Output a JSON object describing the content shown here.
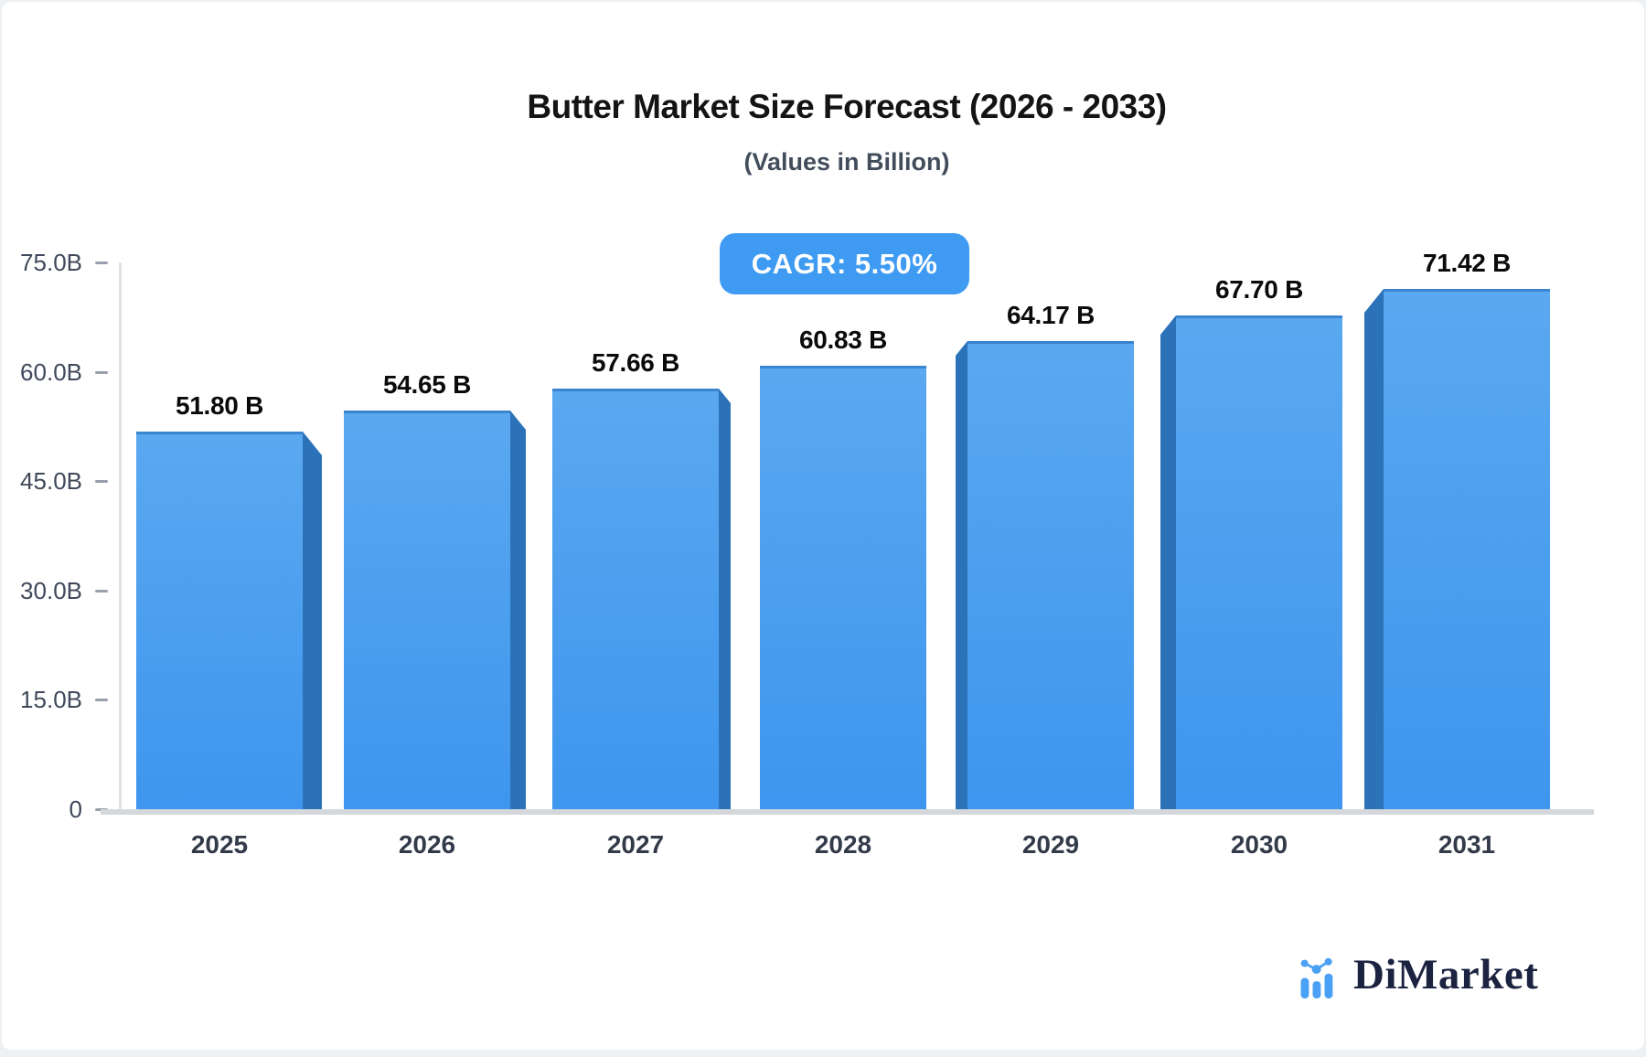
{
  "header": {
    "title": "Butter Market Size Forecast (2026 - 2033)",
    "subtitle": "(Values in Billion)"
  },
  "badge": {
    "text": "CAGR: 5.50%",
    "bg": "#3f9bf2",
    "text_color": "#ffffff"
  },
  "chart_data": {
    "type": "bar",
    "categories": [
      "2025",
      "2026",
      "2027",
      "2028",
      "2029",
      "2030",
      "2031"
    ],
    "values": [
      51.8,
      54.65,
      57.66,
      60.83,
      64.17,
      67.7,
      71.42
    ],
    "value_labels": [
      "51.80 B",
      "54.65 B",
      "57.66 B",
      "60.83 B",
      "64.17 B",
      "67.70 B",
      "71.42 B"
    ],
    "title": "Butter Market Size Forecast (2026 - 2033)",
    "subtitle": "(Values in Billion)",
    "xlabel": "",
    "ylabel": "",
    "ylim": [
      0,
      75
    ],
    "yticks": [
      {
        "value": 0,
        "label": "0"
      },
      {
        "value": 15,
        "label": "15.0B"
      },
      {
        "value": 30,
        "label": "30.0B"
      },
      {
        "value": 45,
        "label": "45.0B"
      },
      {
        "value": 60,
        "label": "60.0B"
      },
      {
        "value": 75,
        "label": "75.0B"
      }
    ],
    "grid": false,
    "legend": false,
    "bar_style": "3d-perspective",
    "colors": {
      "bar_top": "#5aa8f0",
      "bar_bottom": "#3e96ee",
      "bar_side": "#2c72b8",
      "bar_top_line": "#3a85d0",
      "axis_line": "#dde1e6",
      "baseline": "#d4d7db"
    }
  },
  "logo": {
    "text": "DiMarket",
    "icon": "mini-bar-chart-icon",
    "text_color": "#1b2340",
    "accent": "#4aa0f4"
  }
}
